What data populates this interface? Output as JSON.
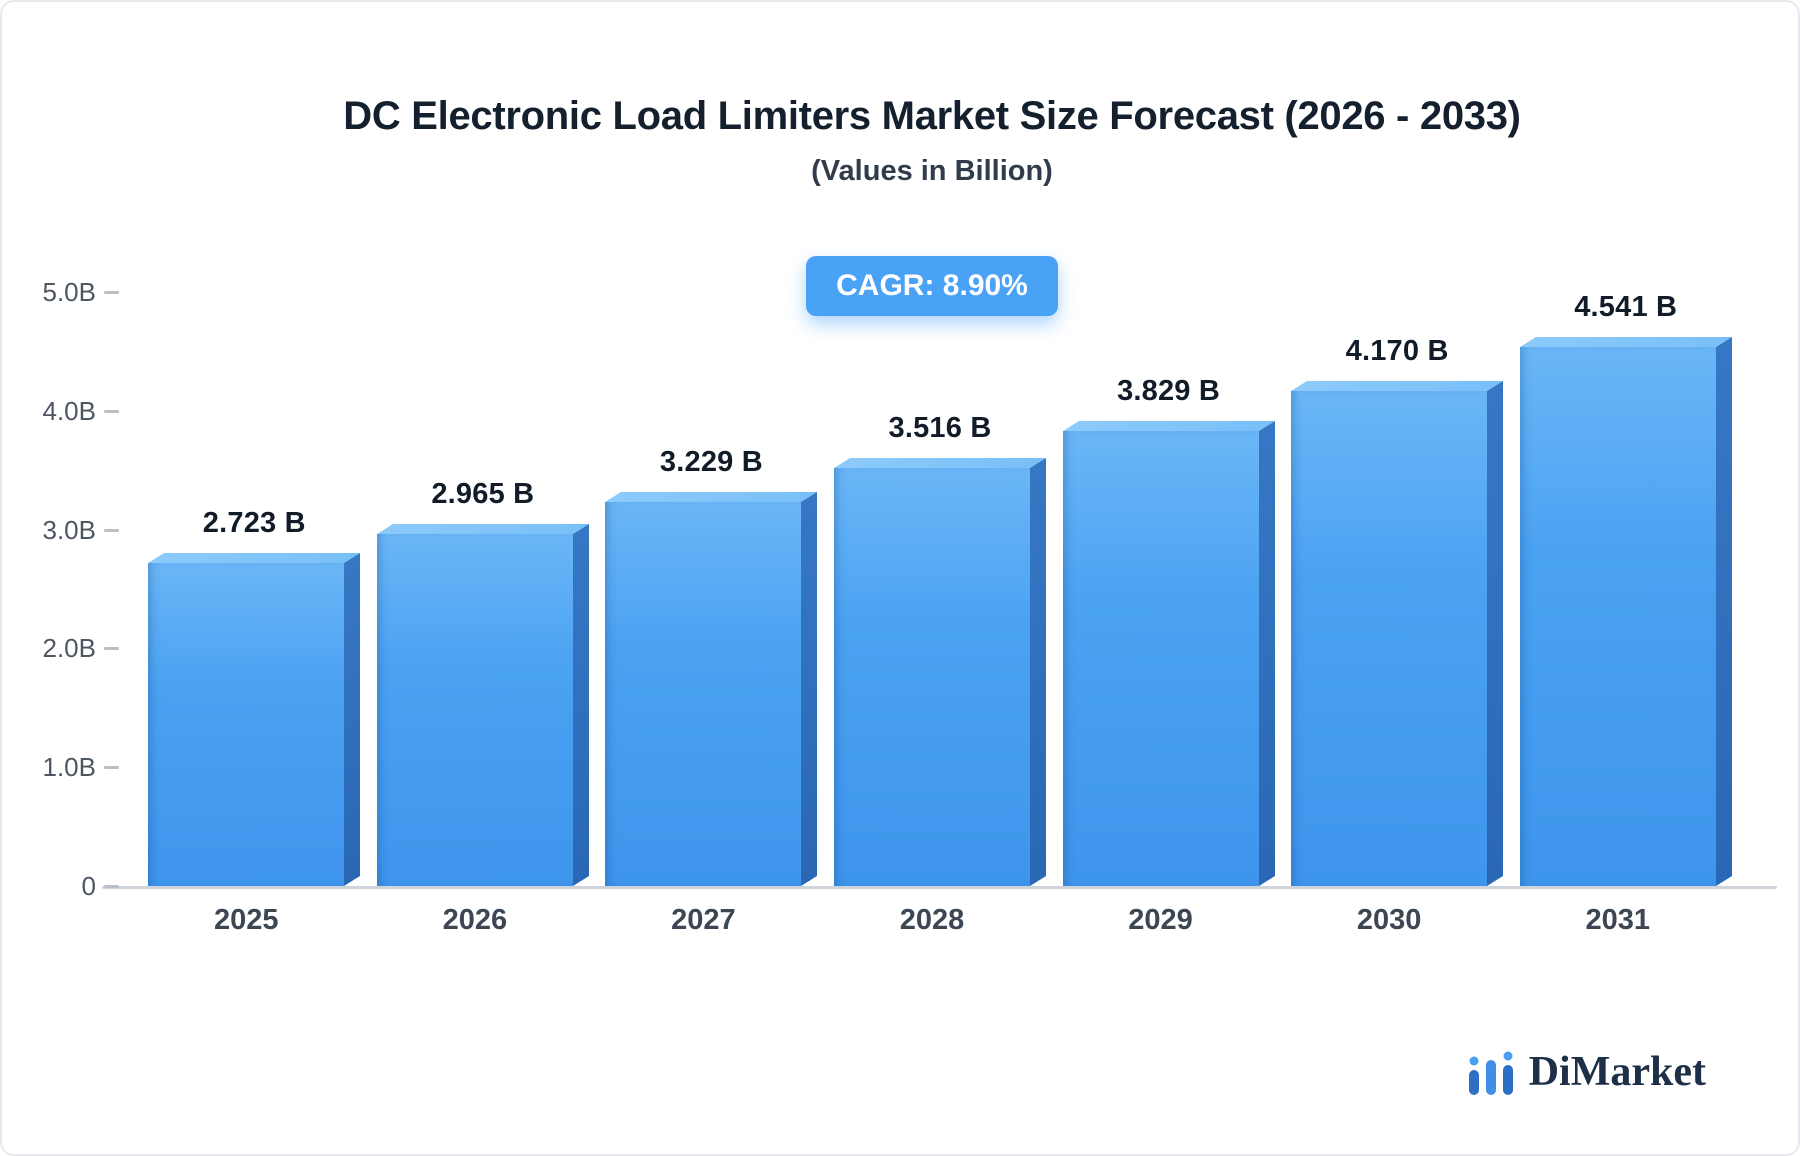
{
  "chart_data": {
    "type": "bar",
    "title": "DC Electronic Load Limiters Market Size Forecast (2026 - 2033)",
    "subtitle": "(Values in Billion)",
    "cagr_label": "CAGR: 8.90%",
    "categories": [
      "2025",
      "2026",
      "2027",
      "2028",
      "2029",
      "2030",
      "2031"
    ],
    "values": [
      2.723,
      2.965,
      3.229,
      3.516,
      3.829,
      4.17,
      4.541
    ],
    "value_labels": [
      "2.723 B",
      "2.965 B",
      "3.229 B",
      "3.516 B",
      "3.829 B",
      "4.170 B",
      "4.541 B"
    ],
    "ylim": [
      0,
      5
    ],
    "y_ticks": [
      {
        "label": "5.0B",
        "value": 5.0
      },
      {
        "label": "4.0B",
        "value": 4.0
      },
      {
        "label": "3.0B",
        "value": 3.0
      },
      {
        "label": "2.0B",
        "value": 2.0
      },
      {
        "label": "1.0B",
        "value": 1.0
      },
      {
        "label": "0",
        "value": 0
      }
    ],
    "grid": false,
    "legend": false,
    "xlabel": "",
    "ylabel": "",
    "colors": {
      "bar_front": "#4ba2f2",
      "bar_side": "#2a68b5",
      "bar_top": "#8ccafa",
      "badge": "#4aa2f6",
      "axis_line": "#cfd4da",
      "label_text": "#121c29"
    }
  },
  "logo": {
    "text": "DiMarket"
  }
}
